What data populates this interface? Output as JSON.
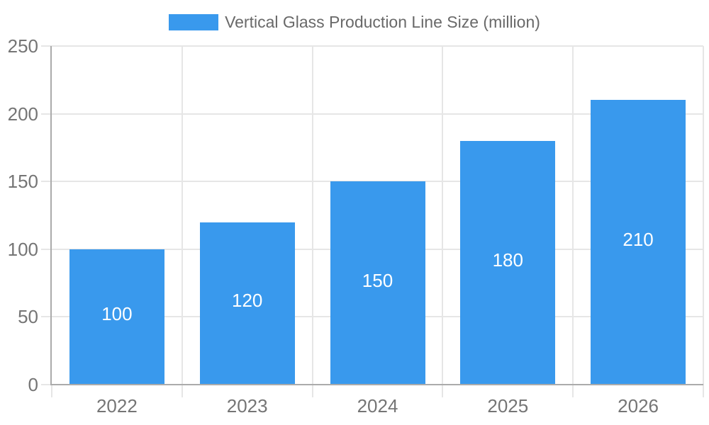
{
  "legend": {
    "label": "Vertical Glass Production Line Size (million)"
  },
  "chart_data": {
    "type": "bar",
    "title": "",
    "xlabel": "",
    "ylabel": "",
    "categories": [
      "2022",
      "2023",
      "2024",
      "2025",
      "2026"
    ],
    "values": [
      100,
      120,
      150,
      180,
      210
    ],
    "series_name": "Vertical Glass Production Line Size (million)",
    "ylim": [
      0,
      250
    ],
    "yticks": [
      0,
      50,
      100,
      150,
      200,
      250
    ],
    "grid": true,
    "legend_position": "top",
    "value_labels": "inside-center"
  },
  "style": {
    "bar_color": "#3999ED",
    "grid_color": "#E6E6E6",
    "axis_color": "#ABABAB",
    "axis_text_color": "#757575",
    "legend_text_color": "#696969",
    "value_label_color": "#FFFFFF",
    "background_color": "#FFFFFF"
  }
}
